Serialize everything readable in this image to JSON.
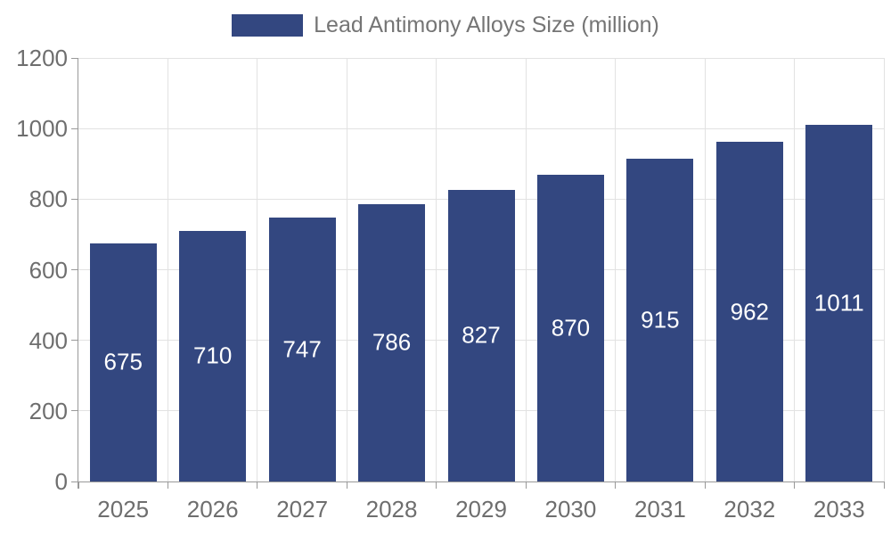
{
  "chart_data": {
    "type": "bar",
    "title": "",
    "legend": "Lead Antimony Alloys Size (million)",
    "legend_position": "top",
    "categories": [
      "2025",
      "2026",
      "2027",
      "2028",
      "2029",
      "2030",
      "2031",
      "2032",
      "2033"
    ],
    "values": [
      675,
      710,
      747,
      786,
      827,
      870,
      915,
      962,
      1011
    ],
    "xlabel": "",
    "ylabel": "",
    "ylim": [
      0,
      1200
    ],
    "yticks": [
      0,
      200,
      400,
      600,
      800,
      1000,
      1200
    ],
    "grid": true,
    "value_label_position": "inside-center",
    "colors": {
      "bar": "#334780",
      "bar_value_text": "#ffffff",
      "axis_text": "#6e6e6e",
      "legend_text": "#757575",
      "grid_line": "#e2e2e2",
      "axis_line": "#999999"
    }
  }
}
